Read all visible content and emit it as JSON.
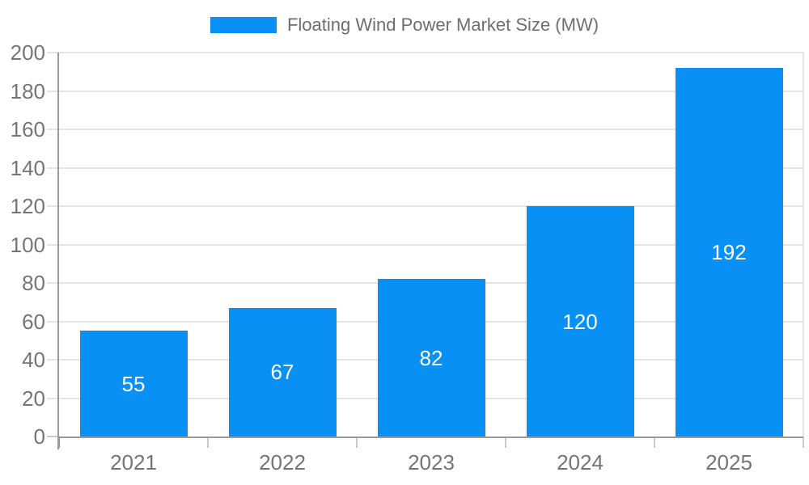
{
  "chart_data": {
    "type": "bar",
    "title": "Floating Wind Power Market Size (MW)",
    "categories": [
      "2021",
      "2022",
      "2023",
      "2024",
      "2025"
    ],
    "values": [
      55,
      67,
      82,
      120,
      192
    ],
    "xlabel": "",
    "ylabel": "",
    "ylim": [
      0,
      200
    ],
    "yticks": [
      0,
      20,
      40,
      60,
      80,
      100,
      120,
      140,
      160,
      180,
      200
    ],
    "grid": true,
    "legend_position": "top",
    "legend_entries": [
      "Floating Wind Power Market Size (MW)"
    ],
    "value_labels_inside_bars": true,
    "colors": {
      "bar": "#0890f5",
      "axis_line": "#999999",
      "grid_line": "#e4e4e4",
      "tick_line": "#c9c9c9",
      "axis_text": "#757575",
      "legend_text": "#6e6e6e",
      "value_label_text": "#ffffff",
      "background": "#ffffff"
    }
  }
}
